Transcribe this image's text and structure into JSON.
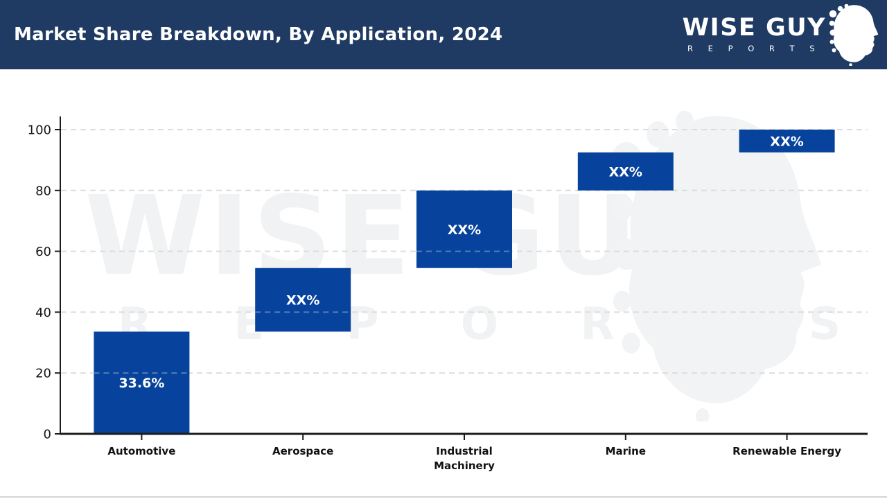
{
  "header": {
    "title": "Market Share Breakdown, By Application, 2024",
    "bg_color": "#1F3A63",
    "logo": {
      "name": "WISE GUY",
      "tagline": "R E P O R T S"
    }
  },
  "watermark": {
    "text1": "WISE GUY",
    "text2": "R E P O R T S"
  },
  "chart_data": {
    "type": "bar",
    "variant": "waterfall",
    "title": "Market Share Breakdown, By Application, 2024",
    "categories": [
      "Automotive",
      "Aerospace",
      "Industrial Machinery",
      "Marine",
      "Renewable Energy"
    ],
    "category_label_lines": [
      [
        "Automotive"
      ],
      [
        "Aerospace"
      ],
      [
        "Industrial",
        "Machinery"
      ],
      [
        "Marine"
      ],
      [
        "Renewable Energy"
      ]
    ],
    "segments": [
      {
        "category": "Automotive",
        "start": 0,
        "end": 33.6,
        "label": "33.6%"
      },
      {
        "category": "Aerospace",
        "start": 33.6,
        "end": 54.5,
        "label": "XX%"
      },
      {
        "category": "Industrial Machinery",
        "start": 54.5,
        "end": 80,
        "label": "XX%"
      },
      {
        "category": "Marine",
        "start": 80,
        "end": 92.5,
        "label": "XX%"
      },
      {
        "category": "Renewable Energy",
        "start": 92.5,
        "end": 100,
        "label": "XX%"
      }
    ],
    "xlabel": "",
    "ylabel": "",
    "ylim": [
      0,
      100
    ],
    "yticks": [
      0,
      20,
      40,
      60,
      80,
      100
    ],
    "grid": "horizontal-dashed",
    "gridline_color": "#dcdcdc",
    "legend": "none",
    "bar_color": "#07439C",
    "bar_label_color": "#FFFFFF",
    "axis_color": "#1c1c1c"
  }
}
